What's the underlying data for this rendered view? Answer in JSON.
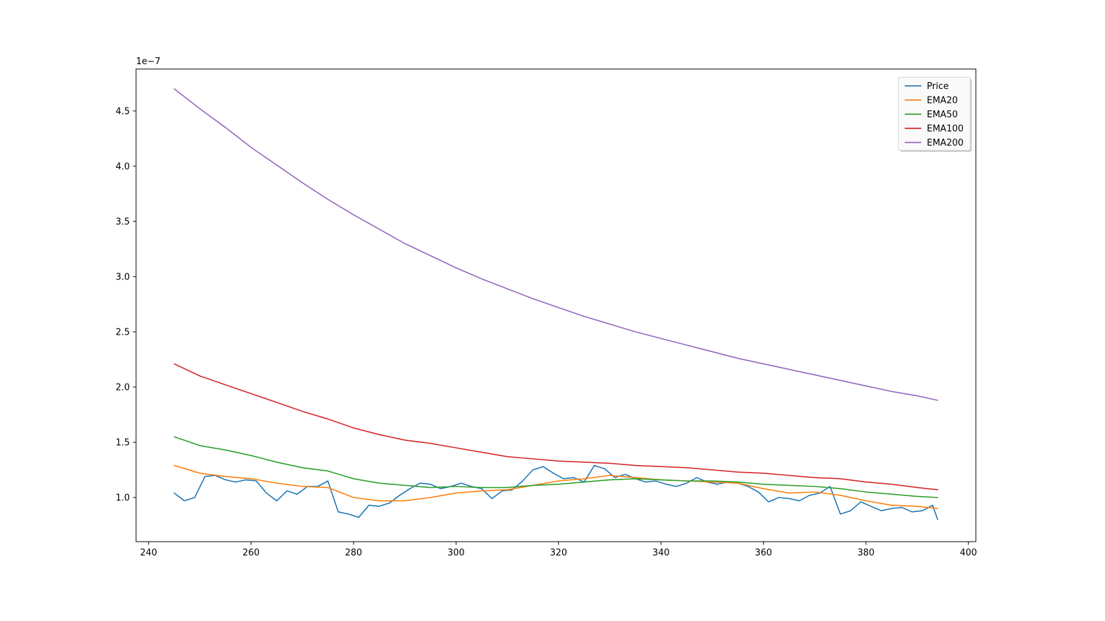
{
  "figure": {
    "background": "#ffffff"
  },
  "chart_data": {
    "type": "line",
    "title": "",
    "xlabel": "",
    "ylabel": "",
    "y_offset_label": "1e−7",
    "units_note": "y values are multiplied by 1e-7 as indicated by the axis offset label",
    "xlim": [
      237.55,
      401.45
    ],
    "ylim": [
      0.6,
      4.88
    ],
    "grid": false,
    "xticks": [
      "240",
      "260",
      "280",
      "300",
      "320",
      "340",
      "360",
      "380",
      "400"
    ],
    "xtick_values": [
      240,
      260,
      280,
      300,
      320,
      340,
      360,
      380,
      400
    ],
    "ytick_labels": [
      "1.0",
      "1.5",
      "2.0",
      "2.5",
      "3.0",
      "3.5",
      "4.0",
      "4.5"
    ],
    "ytick_values": [
      1.0,
      1.5,
      2.0,
      2.5,
      3.0,
      3.5,
      4.0,
      4.5
    ],
    "legend": {
      "position": "upper right",
      "entries": [
        "Price",
        "EMA20",
        "EMA50",
        "EMA100",
        "EMA200"
      ]
    },
    "series": [
      {
        "name": "Price",
        "color": "#1f77b4",
        "x": [
          245,
          247,
          249,
          251,
          253,
          255,
          257,
          259,
          261,
          263,
          265,
          267,
          269,
          271,
          273,
          275,
          277,
          279,
          281,
          283,
          285,
          287,
          289,
          291,
          293,
          295,
          297,
          299,
          301,
          303,
          305,
          307,
          309,
          311,
          313,
          315,
          317,
          319,
          321,
          323,
          325,
          327,
          329,
          331,
          333,
          335,
          337,
          339,
          341,
          343,
          345,
          347,
          349,
          351,
          353,
          355,
          357,
          359,
          361,
          363,
          365,
          367,
          369,
          371,
          373,
          375,
          377,
          379,
          381,
          383,
          385,
          387,
          389,
          391,
          393,
          394
        ],
        "y": [
          1.04,
          0.97,
          1.0,
          1.19,
          1.2,
          1.16,
          1.14,
          1.16,
          1.15,
          1.04,
          0.97,
          1.06,
          1.03,
          1.1,
          1.1,
          1.15,
          0.87,
          0.85,
          0.82,
          0.93,
          0.92,
          0.95,
          1.02,
          1.08,
          1.13,
          1.12,
          1.08,
          1.1,
          1.13,
          1.1,
          1.08,
          0.99,
          1.06,
          1.07,
          1.15,
          1.25,
          1.28,
          1.22,
          1.17,
          1.18,
          1.14,
          1.29,
          1.26,
          1.18,
          1.21,
          1.17,
          1.14,
          1.15,
          1.12,
          1.1,
          1.13,
          1.18,
          1.14,
          1.12,
          1.14,
          1.13,
          1.1,
          1.05,
          0.96,
          1.0,
          0.99,
          0.97,
          1.02,
          1.04,
          1.1,
          0.85,
          0.88,
          0.96,
          0.92,
          0.88,
          0.9,
          0.91,
          0.87,
          0.88,
          0.93,
          0.8
        ]
      },
      {
        "name": "EMA20",
        "color": "#ff7f0e",
        "x": [
          245,
          250,
          255,
          260,
          265,
          270,
          275,
          280,
          285,
          290,
          295,
          300,
          305,
          310,
          315,
          320,
          325,
          330,
          335,
          340,
          345,
          350,
          355,
          360,
          365,
          370,
          375,
          380,
          385,
          390,
          394
        ],
        "y": [
          1.29,
          1.22,
          1.19,
          1.17,
          1.13,
          1.1,
          1.09,
          1.0,
          0.97,
          0.97,
          1.0,
          1.04,
          1.06,
          1.07,
          1.11,
          1.15,
          1.17,
          1.2,
          1.18,
          1.16,
          1.15,
          1.14,
          1.13,
          1.08,
          1.04,
          1.05,
          1.02,
          0.97,
          0.93,
          0.92,
          0.9
        ]
      },
      {
        "name": "EMA50",
        "color": "#2ca02c",
        "x": [
          245,
          250,
          255,
          260,
          265,
          270,
          275,
          280,
          285,
          290,
          295,
          300,
          305,
          310,
          315,
          320,
          325,
          330,
          335,
          340,
          345,
          350,
          355,
          360,
          365,
          370,
          375,
          380,
          385,
          390,
          394
        ],
        "y": [
          1.55,
          1.47,
          1.43,
          1.38,
          1.32,
          1.27,
          1.24,
          1.17,
          1.13,
          1.11,
          1.09,
          1.1,
          1.09,
          1.09,
          1.11,
          1.12,
          1.14,
          1.16,
          1.17,
          1.16,
          1.15,
          1.15,
          1.14,
          1.12,
          1.11,
          1.1,
          1.08,
          1.05,
          1.03,
          1.01,
          1.0
        ]
      },
      {
        "name": "EMA100",
        "color": "#d62728",
        "x": [
          245,
          250,
          255,
          260,
          265,
          270,
          275,
          280,
          285,
          290,
          295,
          300,
          305,
          310,
          315,
          320,
          325,
          330,
          335,
          340,
          345,
          350,
          355,
          360,
          365,
          370,
          375,
          380,
          385,
          390,
          394
        ],
        "y": [
          2.21,
          2.1,
          2.02,
          1.94,
          1.86,
          1.78,
          1.71,
          1.63,
          1.57,
          1.52,
          1.49,
          1.45,
          1.41,
          1.37,
          1.35,
          1.33,
          1.32,
          1.31,
          1.29,
          1.28,
          1.27,
          1.25,
          1.23,
          1.22,
          1.2,
          1.18,
          1.17,
          1.14,
          1.12,
          1.09,
          1.07
        ]
      },
      {
        "name": "EMA200",
        "color": "#9467bd",
        "x": [
          245,
          250,
          255,
          260,
          265,
          270,
          275,
          280,
          285,
          290,
          295,
          300,
          305,
          310,
          315,
          320,
          325,
          330,
          335,
          340,
          345,
          350,
          355,
          360,
          365,
          370,
          375,
          380,
          385,
          390,
          394
        ],
        "y": [
          4.7,
          4.52,
          4.35,
          4.17,
          4.01,
          3.85,
          3.7,
          3.56,
          3.43,
          3.3,
          3.19,
          3.08,
          2.98,
          2.89,
          2.8,
          2.72,
          2.64,
          2.57,
          2.5,
          2.44,
          2.38,
          2.32,
          2.26,
          2.21,
          2.16,
          2.11,
          2.06,
          2.01,
          1.96,
          1.92,
          1.88
        ]
      }
    ],
    "style": {
      "axes_edge_color": "#000000",
      "legend_edge_color": "#cccccc",
      "legend_face_color": "#ffffff",
      "background": "#ffffff"
    }
  }
}
